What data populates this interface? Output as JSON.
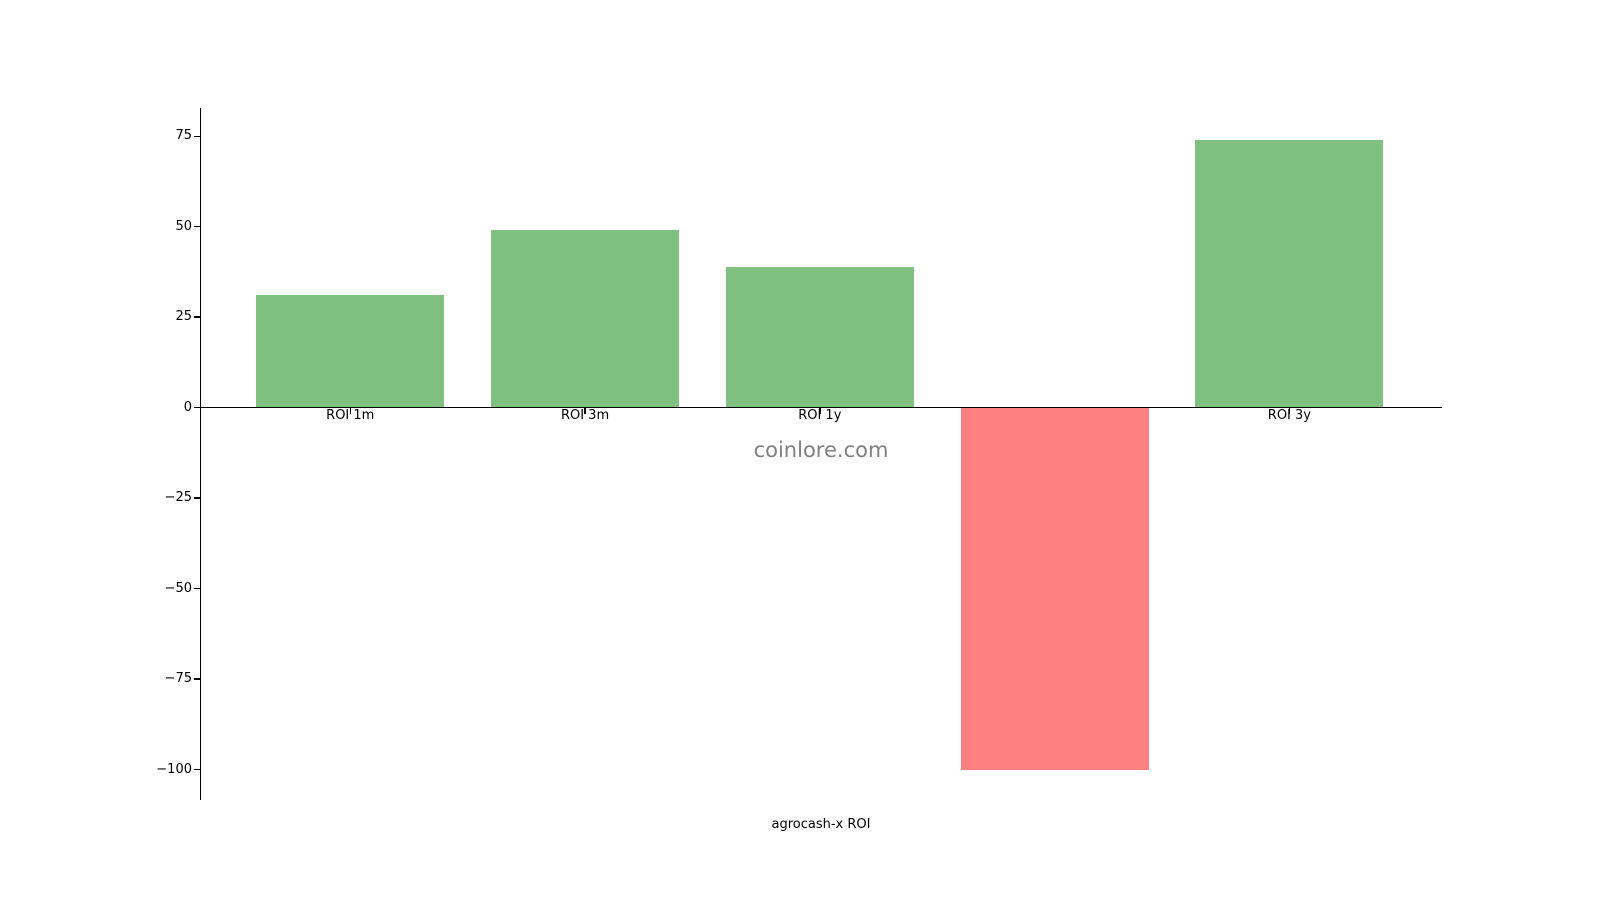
{
  "watermark": {
    "text": "coinlore.com",
    "color": "#808080"
  },
  "chart_data": {
    "type": "bar",
    "title": "",
    "xlabel": "agrocash-x ROI",
    "ylabel": "",
    "categories": [
      "ROI 1m",
      "ROI 3m",
      "ROI 1y",
      "",
      "ROI 3y"
    ],
    "values": [
      31,
      49,
      39,
      -100,
      74
    ],
    "bar_colors": [
      "#80c080",
      "#80c080",
      "#80c080",
      "#ff8080",
      "#80c080"
    ],
    "positive_color": "#80c080",
    "negative_color": "#ff8080",
    "occluded_category_index": 3,
    "ytick_values": [
      75,
      50,
      25,
      0,
      -25,
      -50,
      -75,
      -100
    ],
    "ytick_labels": [
      "75",
      "50",
      "25",
      "0",
      "−25",
      "−50",
      "−75",
      "−100"
    ],
    "ylim": [
      -108.4,
      82.8
    ],
    "xlim": [
      -0.64,
      4.65
    ],
    "bar_width": 0.8,
    "grid": false,
    "legend": false,
    "axis_color": "#000000"
  }
}
